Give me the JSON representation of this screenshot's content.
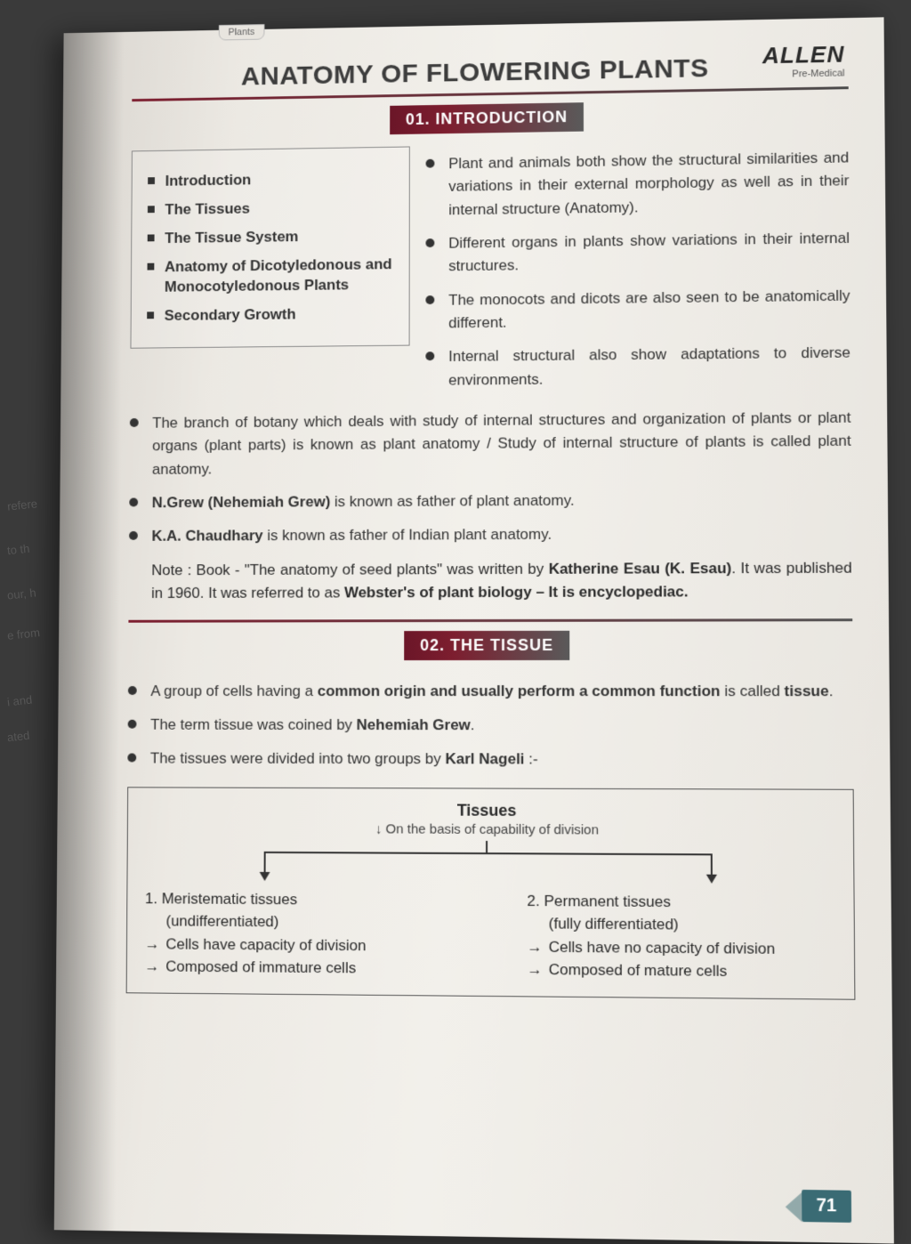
{
  "top_tab": "Plants",
  "brand": {
    "name": "ALLEN",
    "sub": "Pre-Medical"
  },
  "chapter_title": "ANATOMY OF FLOWERING PLANTS",
  "section1": {
    "banner": "01. INTRODUCTION",
    "toc": [
      "Introduction",
      "The Tissues",
      "The Tissue System",
      "Anatomy of Dicotyledonous and Monocotyledonous Plants",
      "Secondary Growth"
    ],
    "intro_bullets": [
      "Plant and animals both show the structural similarities and variations in their external morphology as well as in their internal structure (Anatomy).",
      "Different organs in plants show variations in their internal structures.",
      "The monocots and dicots are also seen to be anatomically different.",
      "Internal structural also show adaptations to diverse environments."
    ],
    "body_bullets": [
      "The branch of botany which deals with study of internal structures and organization of plants or plant organs (plant parts) is known as plant anatomy / Study of internal structure of plants is called plant anatomy.",
      "<b>N.Grew (Nehemiah Grew)</b> is known as father of plant anatomy.",
      "<b>K.A. Chaudhary</b> is known as father of Indian plant anatomy."
    ],
    "note": "Note : Book - \"The anatomy of seed plants\" was written by <b>Katherine Esau (K. Esau)</b>. It was published in 1960. It was referred to as <b>Webster's of plant biology – It is encyclopediac.</b>"
  },
  "section2": {
    "banner": "02. THE TISSUE",
    "bullets": [
      "A group of cells having a <b>common origin and usually perform a common function</b> is called <b>tissue</b>.",
      "The term tissue was coined by <b>Nehemiah Grew</b>.",
      "The tissues were divided into two groups by <b>Karl Nageli</b> :-"
    ],
    "diagram": {
      "title": "Tissues",
      "subtitle": "On the basis of capability of division",
      "arrow_down_glyph": "↓",
      "left": {
        "num": "1.",
        "head": "Meristematic tissues",
        "paren": "(undifferentiated)",
        "lines": [
          "Cells have capacity of division",
          "Composed of immature cells"
        ]
      },
      "right": {
        "num": "2.",
        "head": "Permanent tissues",
        "paren": "(fully differentiated)",
        "lines": [
          "Cells have no capacity of division",
          "Composed of mature cells"
        ]
      },
      "colors": {
        "stroke": "#333333"
      }
    }
  },
  "page_number": "71",
  "margin_notes": [
    "refere",
    "to th",
    "our, h",
    "e from",
    "i and",
    "ated"
  ],
  "colors": {
    "banner_bg": "#7d1e2f",
    "pagenum_bg": "#3a6b74",
    "text": "#2a2a2a"
  }
}
